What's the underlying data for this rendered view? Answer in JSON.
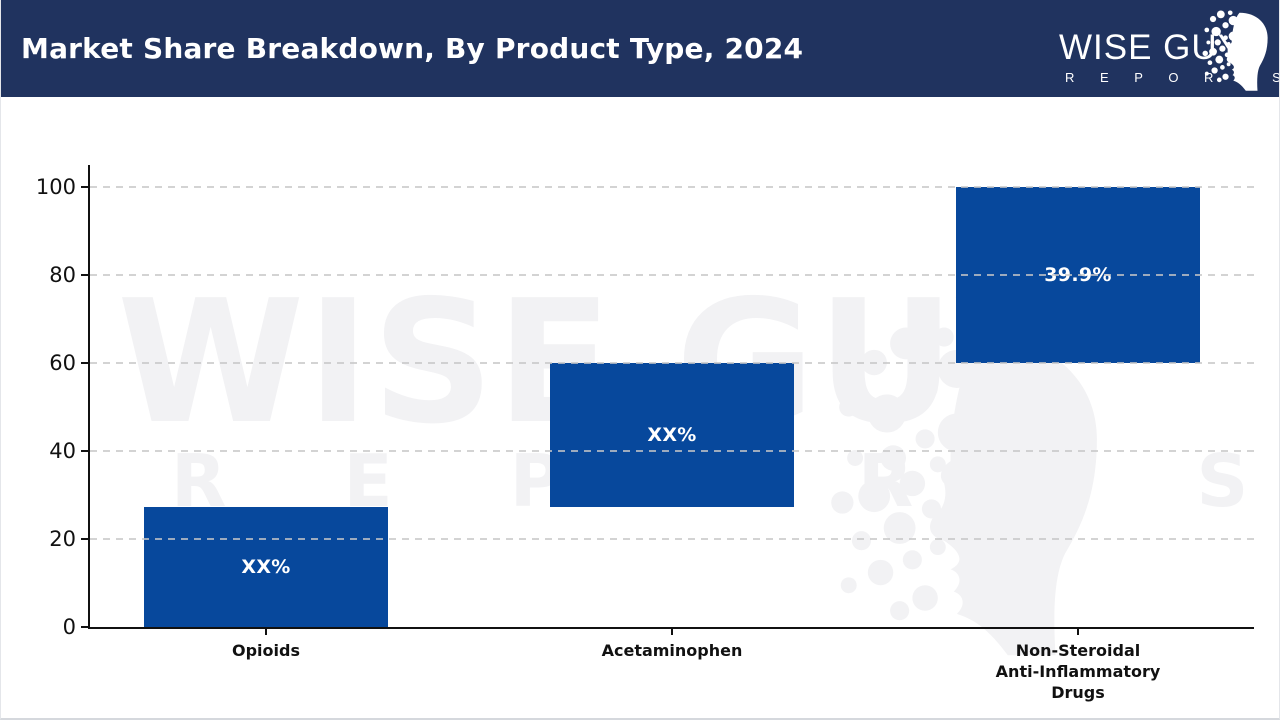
{
  "header": {
    "title": "Market Share Breakdown, By Product Type, 2024",
    "logo": {
      "line1": "WISE GUY",
      "line2": "R E P O R T S"
    }
  },
  "watermark": {
    "line1": "WISE GUY",
    "line2": "R E P O R T S"
  },
  "colors": {
    "header_bg": "#20335f",
    "bar": "#07489c",
    "grid": "#c7c7c7",
    "axis": "#111111",
    "bar_label": "#ffffff",
    "watermark": "#f2f2f4"
  },
  "chart_data": {
    "type": "bar",
    "variant": "waterfall",
    "title": "Market Share Breakdown, By Product Type, 2024",
    "xlabel": "",
    "ylabel": "",
    "categories": [
      "Opioids",
      "Acetaminophen",
      "Non-Steroidal\nAnti-Inflammatory\nDrugs"
    ],
    "bars": [
      {
        "category": "Opioids",
        "start": 0,
        "end": 27.3,
        "value": 27.3,
        "value_label": "XX%"
      },
      {
        "category": "Acetaminophen",
        "start": 27.3,
        "end": 60,
        "value": 32.7,
        "value_label": "XX%"
      },
      {
        "category": "Non-Steroidal Anti-Inflammatory Drugs",
        "start": 60,
        "end": 100,
        "value": 39.9,
        "value_label": "39.9%"
      }
    ],
    "y_ticks": [
      0,
      20,
      40,
      60,
      80,
      100
    ],
    "ylim": [
      0,
      105
    ],
    "grid": "horizontal-dashed",
    "legend": null
  }
}
